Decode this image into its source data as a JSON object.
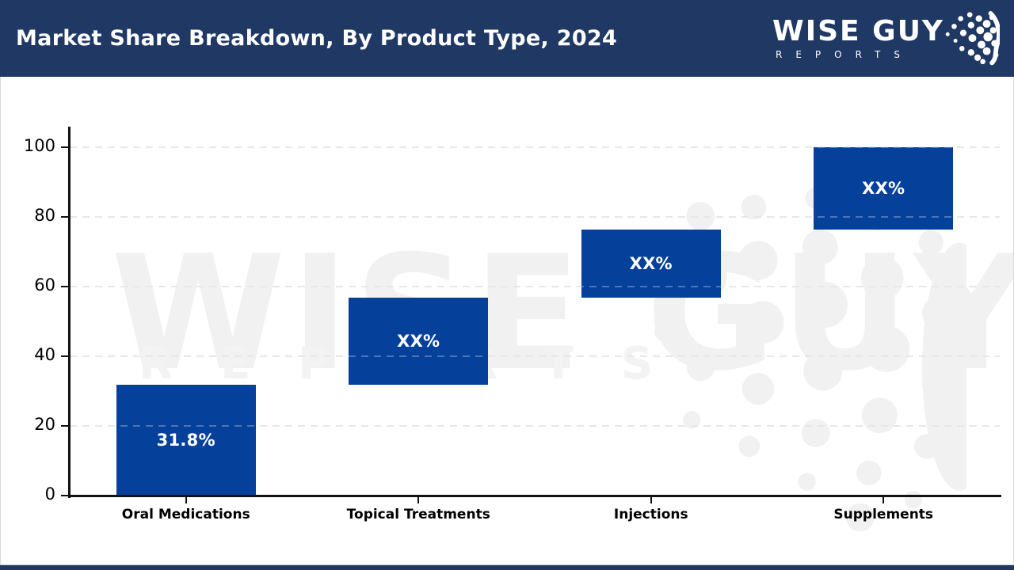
{
  "header": {
    "title": "Market Share Breakdown, By Product Type, 2024",
    "logo": {
      "name": "WISE GUY",
      "sub": "REPORTS"
    }
  },
  "watermark": {
    "name": "WISE GUY",
    "sub": "REPORTS"
  },
  "colors": {
    "header_bg": "#1f3864",
    "bar": "#05409b",
    "bar_label": "#ffffff",
    "grid": "#dedede",
    "axis": "#111111",
    "watermark": "#f0f0f0"
  },
  "chart_data": {
    "type": "bar",
    "variant": "waterfall",
    "title": "Market Share Breakdown, By Product Type, 2024",
    "categories": [
      "Oral Medications",
      "Topical Treatments",
      "Injections",
      "Supplements"
    ],
    "segments": [
      {
        "category": "Oral Medications",
        "start": 0,
        "end": 31.8,
        "label": "31.8%"
      },
      {
        "category": "Topical Treatments",
        "start": 31.8,
        "end": 56.8,
        "label": "XX%"
      },
      {
        "category": "Injections",
        "start": 56.8,
        "end": 76.4,
        "label": "XX%"
      },
      {
        "category": "Supplements",
        "start": 76.4,
        "end": 100,
        "label": "XX%"
      }
    ],
    "yticks": [
      0,
      20,
      40,
      60,
      80,
      100
    ],
    "ylim": [
      0,
      106
    ],
    "grid": "horizontal-dashed",
    "legend": "none"
  }
}
